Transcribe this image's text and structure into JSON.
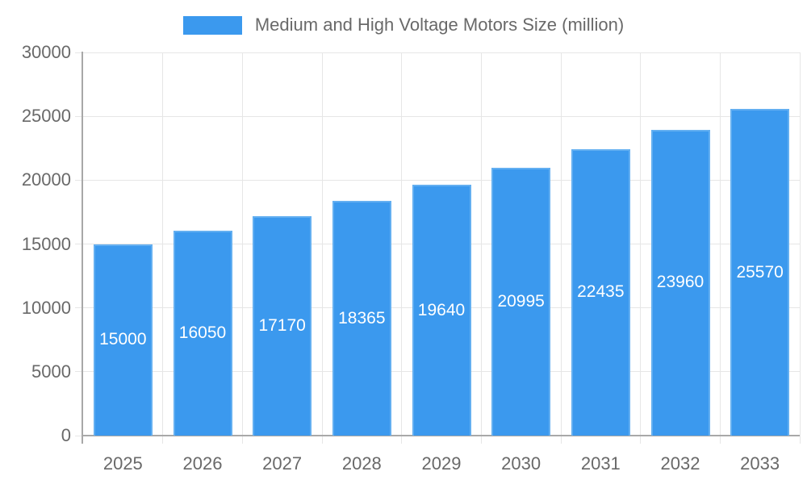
{
  "legend": {
    "label": "Medium and High Voltage Motors Size (million)"
  },
  "chart_data": {
    "type": "bar",
    "title": "Medium and High Voltage Motors Size (million)",
    "categories": [
      "2025",
      "2026",
      "2027",
      "2028",
      "2029",
      "2030",
      "2031",
      "2032",
      "2033"
    ],
    "values": [
      15000,
      16050,
      17170,
      18365,
      19640,
      20995,
      22435,
      23960,
      25570
    ],
    "xlabel": "",
    "ylabel": "",
    "ylim": [
      0,
      30000
    ],
    "yticks": [
      0,
      5000,
      10000,
      15000,
      20000,
      25000,
      30000
    ],
    "grid": true,
    "legend_position": "top-center",
    "legend_entries": [
      "Medium and High Voltage Motors Size (million)"
    ],
    "bar_color": "#3b99ee",
    "bar_border_color": "#63aff1",
    "value_label_color": "#ffffff"
  },
  "colors": {
    "background": "#ffffff",
    "bar": "#3b99ee",
    "bar_border": "#63aff1",
    "grid_line": "#e6e6e6",
    "axis_line": "#a8a8a8",
    "tick_text": "#696969",
    "legend_text": "#696969",
    "value_text": "#ffffff"
  }
}
